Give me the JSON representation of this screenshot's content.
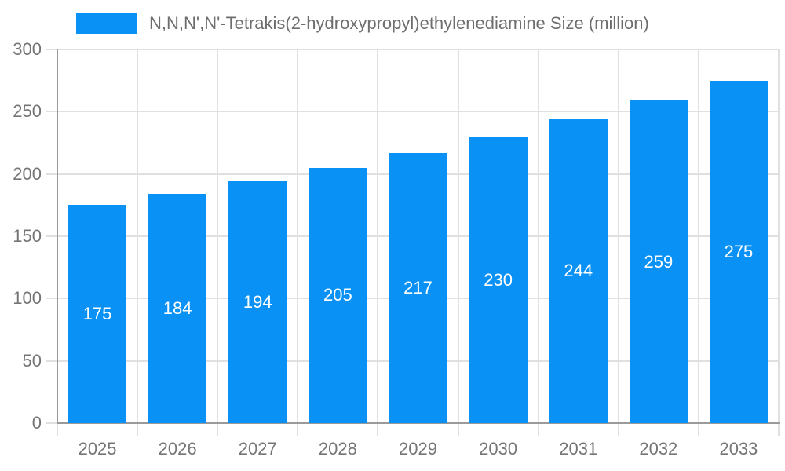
{
  "chart_data": {
    "type": "bar",
    "title": "",
    "categories": [
      "2025",
      "2026",
      "2027",
      "2028",
      "2029",
      "2030",
      "2031",
      "2032",
      "2033"
    ],
    "series": [
      {
        "name": "N,N,N',N'-Tetrakis(2-hydroxypropyl)ethylenediamine Size (million)",
        "values": [
          175,
          184,
          194,
          205,
          217,
          230,
          244,
          259,
          275
        ],
        "color": "#0a91f5"
      }
    ],
    "xlabel": "",
    "ylabel": "",
    "ylim": [
      0,
      300
    ],
    "y_ticks": [
      0,
      50,
      100,
      150,
      200,
      250,
      300
    ],
    "grid": true,
    "value_labels": "inside-center",
    "legend_position": "top-left",
    "colors": {
      "bar": "#0a91f5",
      "grid": "#e0e0e0",
      "axis": "#9a9a9a",
      "tick_text": "#757575",
      "legend_text": "#6e6e6e",
      "value_text": "#ffffff",
      "background": "#ffffff"
    }
  }
}
